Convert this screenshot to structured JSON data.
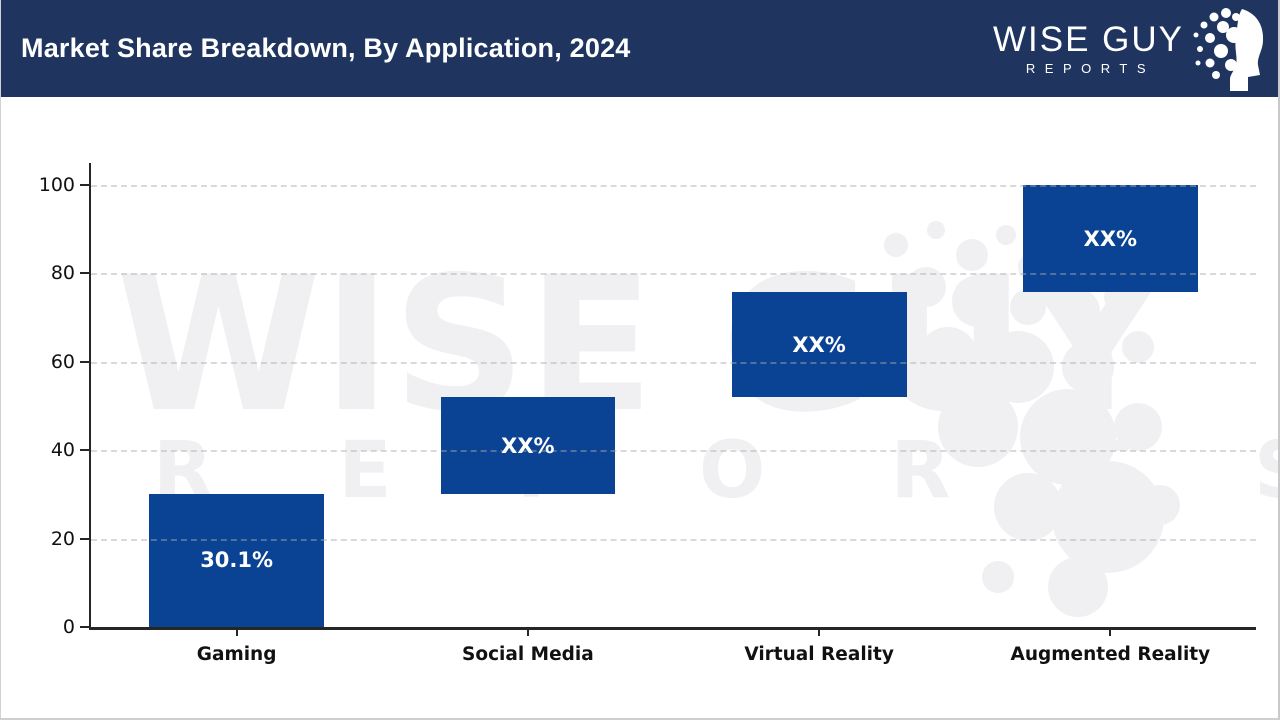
{
  "header": {
    "title": "Market Share Breakdown, By Application, 2024",
    "logo_line1": "WISE GUY",
    "logo_line2": "REPORTS",
    "bg_color": "#1f3560"
  },
  "watermark": {
    "line1": "WISE GUY",
    "line2": "R E P O R T S"
  },
  "colors": {
    "header_bg": "#1f3560",
    "bar_blue": "#0a4294",
    "grid": "#dcdcdc",
    "watermark": "#f0f0f2",
    "axis": "#262626"
  },
  "chart_data": {
    "type": "bar",
    "subtype": "floating-waterfall",
    "title": "Market Share Breakdown, By Application, 2024",
    "bars": [
      {
        "category": "Gaming",
        "start": 0,
        "end": 30.1,
        "label": "30.1%"
      },
      {
        "category": "Social Media",
        "start": 30.1,
        "end": 52,
        "label": "XX%"
      },
      {
        "category": "Virtual Reality",
        "start": 52,
        "end": 75.8,
        "label": "XX%"
      },
      {
        "category": "Augmented Reality",
        "start": 75.8,
        "end": 100,
        "label": "XX%"
      }
    ],
    "xlabel": "",
    "ylabel": "",
    "y_ticks": [
      0,
      20,
      40,
      60,
      80,
      100
    ],
    "ylim": [
      0,
      105
    ],
    "grid": "horizontal-dashed",
    "legend": "none",
    "bar_color": "#0a4294",
    "bar_label_color": "#ffffff"
  }
}
